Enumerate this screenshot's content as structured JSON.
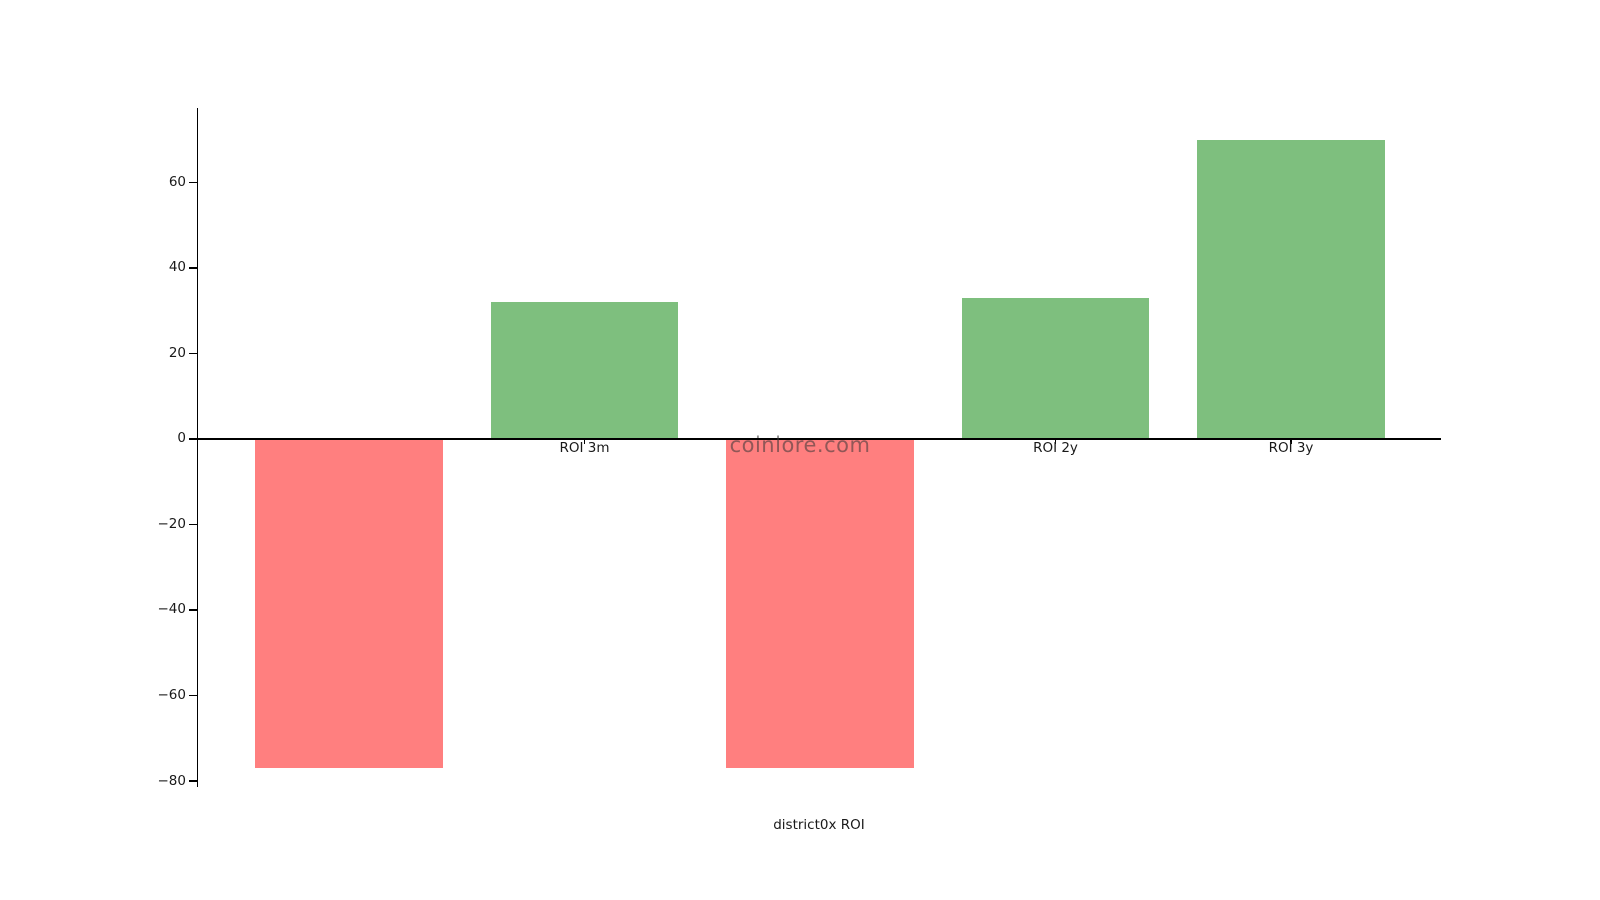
{
  "canvas": {
    "background": "#ffffff"
  },
  "chart_data": {
    "type": "bar",
    "title": "",
    "xlabel": "district0x ROI",
    "ylabel": "",
    "watermark": "coinlore.com",
    "categories": [
      "",
      "ROI 3m",
      "",
      "ROI 2y",
      "ROI 3y"
    ],
    "values": [
      -77,
      32,
      -77,
      33,
      70
    ],
    "bar_colors": [
      "#ff7f7f",
      "#7ebf7e",
      "#ff7f7f",
      "#7ebf7e",
      "#7ebf7e"
    ],
    "y_tick_values": [
      60,
      40,
      20,
      0,
      -20,
      -40,
      -60,
      -80
    ],
    "y_tick_labels": [
      "60",
      "40",
      "20",
      "0",
      "−20",
      "−40",
      "−60",
      "−80"
    ],
    "ylim": [
      -81.4,
      77.4
    ],
    "grid": false,
    "legend_position": "none",
    "colors": {
      "positive": "#7ebf7e",
      "negative": "#ff7f7f",
      "axis": "#000000",
      "tick_label": "#1a1a1a",
      "watermark_gray": "#373737"
    }
  }
}
